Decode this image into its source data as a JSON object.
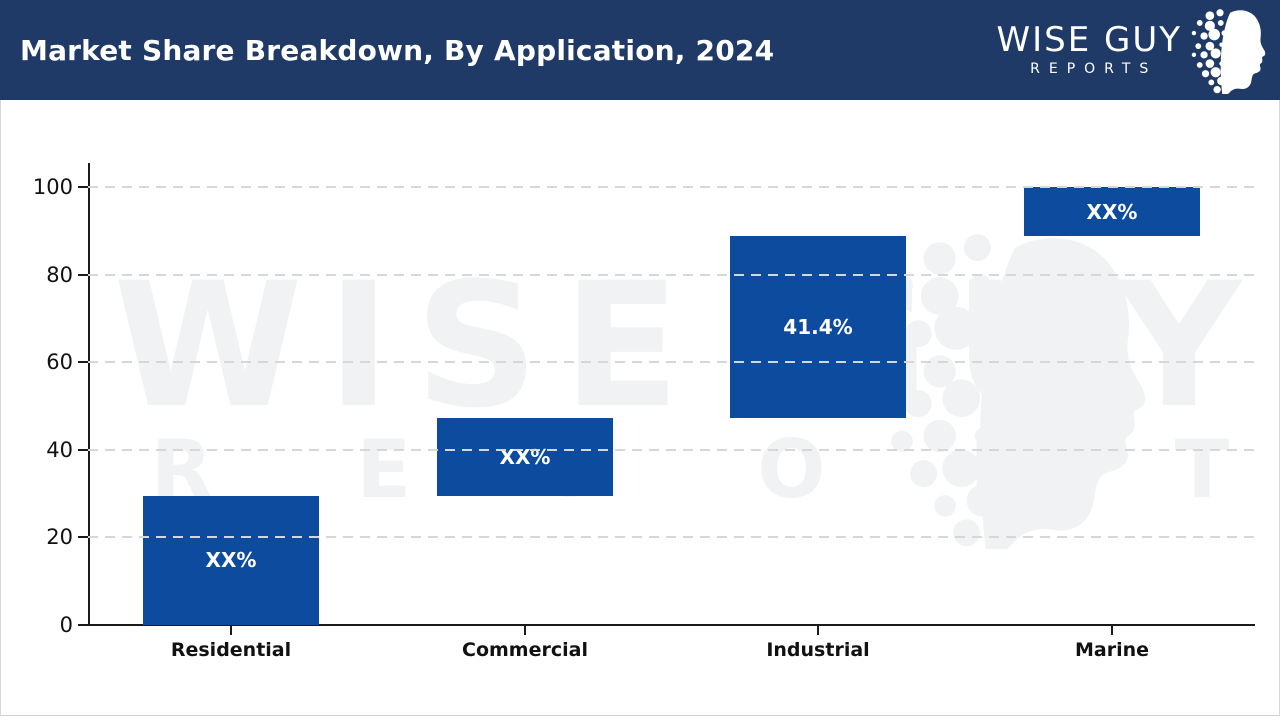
{
  "header": {
    "title": "Market Share Breakdown, By Application, 2024",
    "bg_color": "#1f3a66",
    "logo": {
      "line1": "WISE GUY",
      "line2": "REPORTS"
    }
  },
  "watermark": {
    "line1": "WISE GUY",
    "line2": "R E P O R T S"
  },
  "chart_data": {
    "type": "bar",
    "subtype": "floating-waterfall",
    "title": "Market Share Breakdown, By Application, 2024",
    "categories": [
      "Residential",
      "Commercial",
      "Industrial",
      "Marine"
    ],
    "series": [
      {
        "name": "Market Share (%)",
        "segments": [
          {
            "category": "Residential",
            "start": 0,
            "end": 29.5,
            "label": "XX%"
          },
          {
            "category": "Commercial",
            "start": 29.5,
            "end": 47.3,
            "label": "XX%"
          },
          {
            "category": "Industrial",
            "start": 47.3,
            "end": 88.7,
            "label": "41.4%"
          },
          {
            "category": "Marine",
            "start": 88.7,
            "end": 100,
            "label": "XX%"
          }
        ]
      }
    ],
    "xlabel": "",
    "ylabel": "",
    "ylim": [
      0,
      105
    ],
    "yticks": [
      0,
      20,
      40,
      60,
      80,
      100
    ],
    "grid": "horizontal-dashed",
    "legend": "none",
    "bar_color": "#0c4b9e",
    "bar_label_color": "#ffffff",
    "axis_color": "#1a1a1a",
    "grid_color": "#d7d7d7"
  }
}
